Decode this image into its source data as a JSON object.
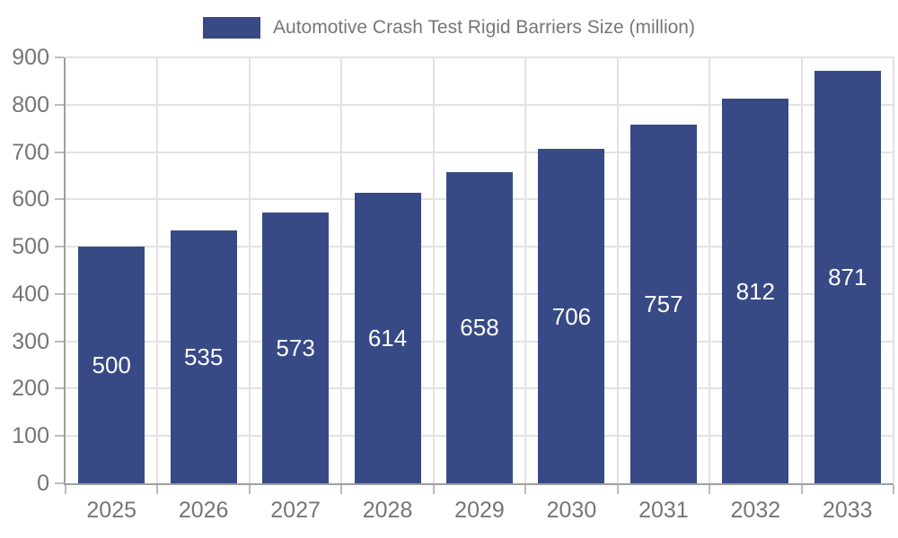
{
  "legend": {
    "label": "Automotive Crash Test Rigid Barriers Size (million)"
  },
  "chart_data": {
    "type": "bar",
    "title": "",
    "series_name": "Automotive Crash Test Rigid Barriers Size (million)",
    "categories": [
      "2025",
      "2026",
      "2027",
      "2028",
      "2029",
      "2030",
      "2031",
      "2032",
      "2033"
    ],
    "values": [
      500,
      535,
      573,
      614,
      658,
      706,
      757,
      812,
      871
    ],
    "xlabel": "",
    "ylabel": "",
    "ylim": [
      0,
      900
    ],
    "yticks": [
      0,
      100,
      200,
      300,
      400,
      500,
      600,
      700,
      800,
      900
    ],
    "grid": true,
    "legend_position": "top",
    "value_labels": "inside-center",
    "colors": {
      "bar": "#384A85",
      "value_label": "#FFFFFF",
      "axis_text": "#757575",
      "legend_text": "#777777",
      "grid_line": "#E2E2E2",
      "axis_line": "#9E9E9E",
      "tick_mark": "#BBBBBB",
      "background": "#FFFFFF"
    }
  }
}
